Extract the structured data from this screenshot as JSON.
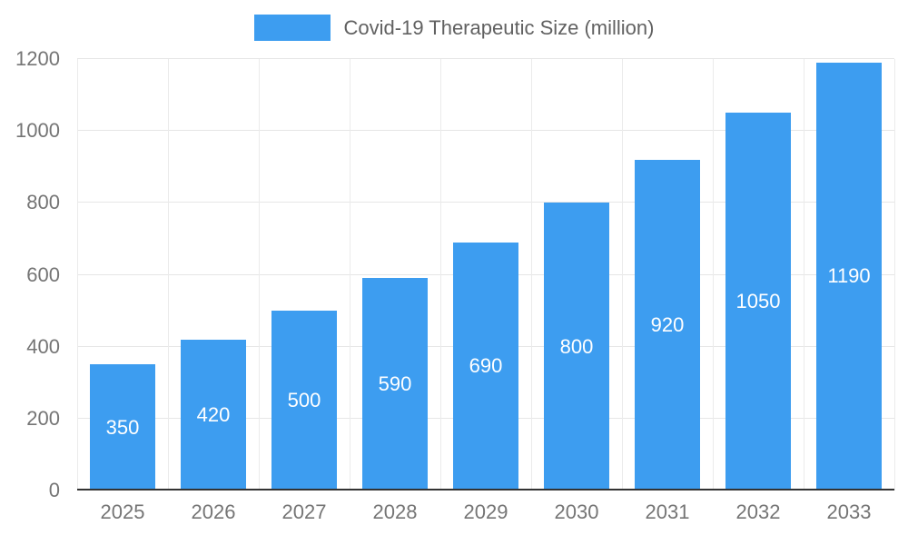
{
  "legend": {
    "label": "Covid-19 Therapeutic Size (million)"
  },
  "chart_data": {
    "type": "bar",
    "title": "Covid-19 Therapeutic Size (million)",
    "series_name": "Covid-19 Therapeutic Size (million)",
    "categories": [
      "2025",
      "2026",
      "2027",
      "2028",
      "2029",
      "2030",
      "2031",
      "2032",
      "2033"
    ],
    "values": [
      350,
      420,
      500,
      590,
      690,
      800,
      920,
      1050,
      1190
    ],
    "xlabel": "",
    "ylabel": "",
    "ylim": [
      0,
      1200
    ],
    "yticks": [
      0,
      200,
      400,
      600,
      800,
      1000,
      1200
    ],
    "grid": true,
    "legend_position": "top",
    "bar_color": "#3D9DF0",
    "value_label_color": "#ffffff",
    "axis_text_color": "#757575",
    "legend_text_color": "#616161",
    "grid_color": "#e6e6e6",
    "baseline_color": "#333333"
  }
}
